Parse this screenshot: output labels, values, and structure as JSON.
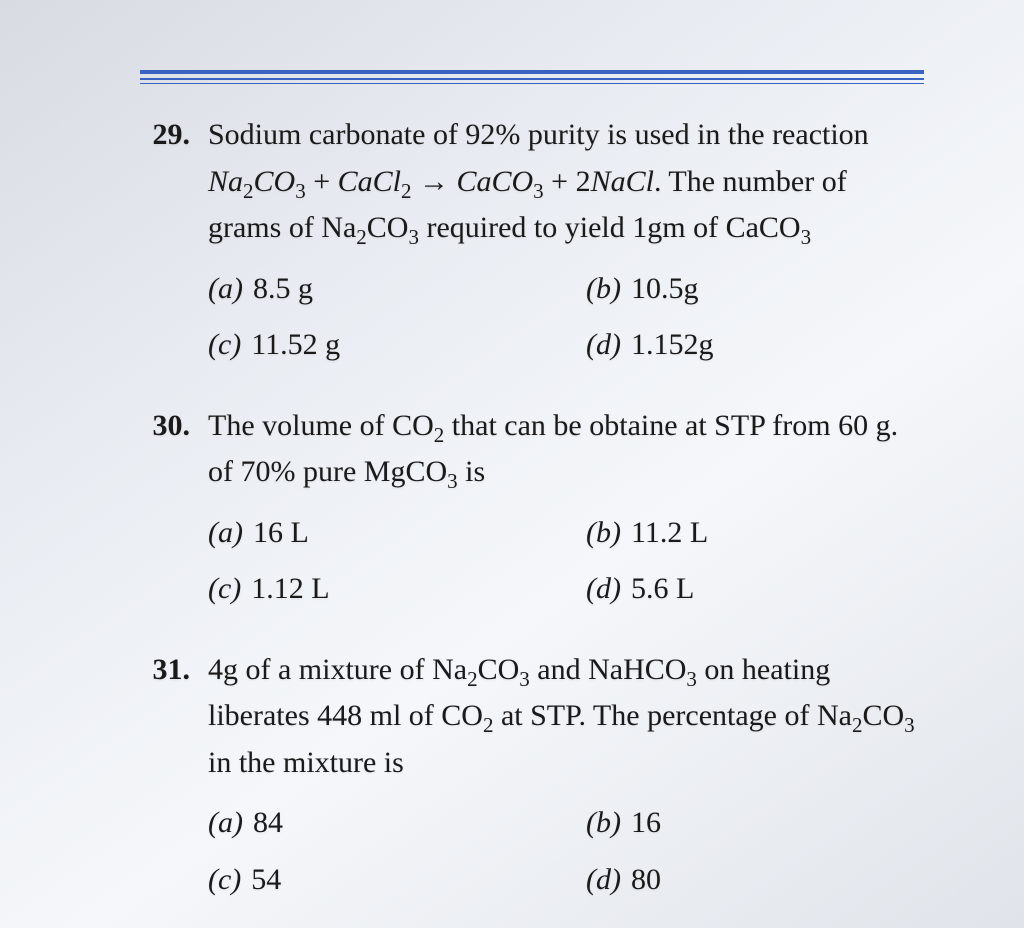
{
  "divider": {
    "color": "#3a62c0",
    "widths": [
      4,
      2,
      1
    ]
  },
  "questions": [
    {
      "number": "29.",
      "text": "Sodium carbonate of 92% purity is used in the reaction Na₂CO₃ + CaCl₂ → CaCO₃ + 2NaCl. The number of grams of Na₂CO₃ required to yield 1gm of CaCO₃",
      "options": {
        "a": {
          "label": "(a)",
          "value": "8.5 g"
        },
        "b": {
          "label": "(b)",
          "value": "10.5g"
        },
        "c": {
          "label": "(c)",
          "value": "11.52 g"
        },
        "d": {
          "label": "(d)",
          "value": "1.152g"
        }
      }
    },
    {
      "number": "30.",
      "text": "The volume of CO₂ that can be obtaine at STP from 60 g. of 70% pure MgCO₃ is",
      "options": {
        "a": {
          "label": "(a)",
          "value": "16 L"
        },
        "b": {
          "label": "(b)",
          "value": "11.2 L"
        },
        "c": {
          "label": "(c)",
          "value": "1.12 L"
        },
        "d": {
          "label": "(d)",
          "value": "5.6 L"
        }
      }
    },
    {
      "number": "31.",
      "text": "4g of a mixture of Na₂CO₃ and NaHCO₃ on heating liberates 448 ml of CO₂ at STP. The percentage of Na₂CO₃ in the mixture is",
      "options": {
        "a": {
          "label": "(a)",
          "value": "84"
        },
        "b": {
          "label": "(b)",
          "value": "16"
        },
        "c": {
          "label": "(c)",
          "value": "54"
        },
        "d": {
          "label": "(d)",
          "value": "80"
        }
      }
    }
  ]
}
